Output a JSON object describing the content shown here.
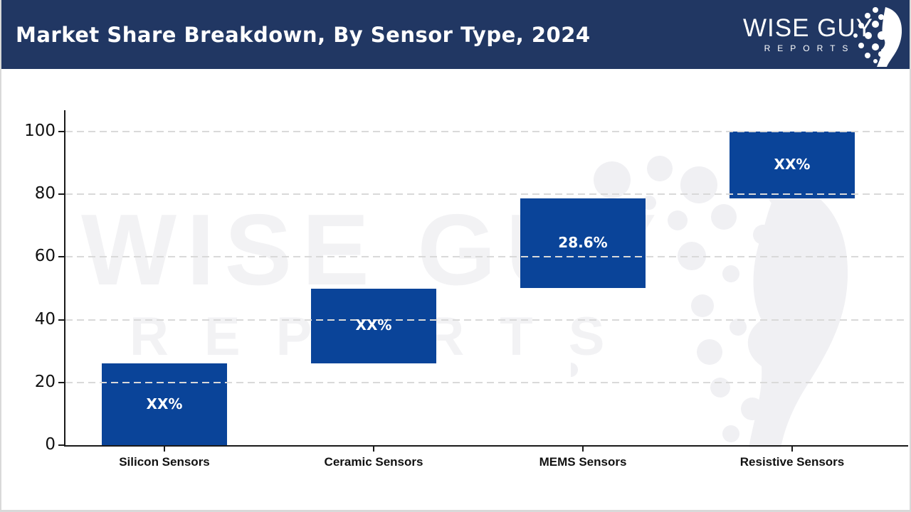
{
  "header": {
    "title": "Market Share Breakdown, By Sensor Type, 2024",
    "background": "#213763",
    "logo": {
      "primary": "WISE GUY",
      "secondary": "REPORTS"
    }
  },
  "watermark": {
    "primary": "WISE GUY",
    "secondary": "REPORTS"
  },
  "chart_data": {
    "type": "bar",
    "subtype": "floating-range-bars",
    "title": "Market Share Breakdown, By Sensor Type, 2024",
    "categories": [
      "Silicon Sensors",
      "Ceramic Sensors",
      "MEMS Sensors",
      "Resistive Sensors"
    ],
    "bars": [
      {
        "category": "Silicon Sensors",
        "from": 0,
        "to": 26,
        "label": "XX%"
      },
      {
        "category": "Ceramic Sensors",
        "from": 26,
        "to": 50,
        "label": "XX%"
      },
      {
        "category": "MEMS Sensors",
        "from": 50,
        "to": 78.6,
        "label": "28.6%"
      },
      {
        "category": "Resistive Sensors",
        "from": 78.6,
        "to": 100,
        "label": "XX%"
      }
    ],
    "xlabel": "",
    "ylabel": "",
    "yticks": [
      0,
      20,
      40,
      60,
      80,
      100
    ],
    "ylim": [
      0,
      106
    ],
    "grid": "horizontal-dashed",
    "legend": "none",
    "bar_color": "#0a4499",
    "bar_label_color": "#ffffff",
    "axis_color": "#1a1a1a",
    "grid_color": "#d9d9d9",
    "tick_label_color": "#111111"
  }
}
